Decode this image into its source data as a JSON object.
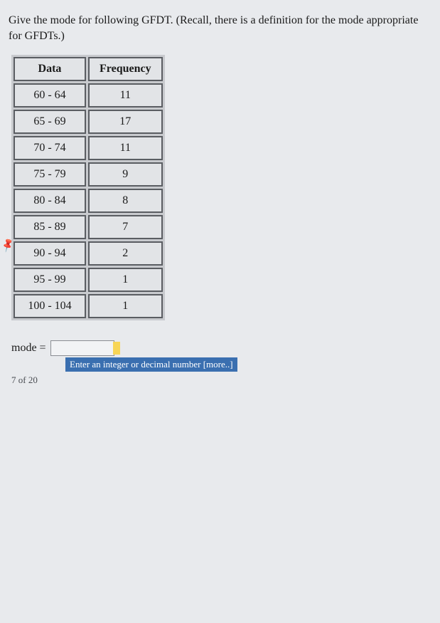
{
  "question": "Give the mode for following GFDT. (Recall, there is a definition for the mode appropriate for GFDTs.)",
  "table": {
    "headers": [
      "Data",
      "Frequency"
    ],
    "rows": [
      [
        "60 - 64",
        "11"
      ],
      [
        "65 - 69",
        "17"
      ],
      [
        "70 - 74",
        "11"
      ],
      [
        "75 - 79",
        "9"
      ],
      [
        "80 - 84",
        "8"
      ],
      [
        "85 - 89",
        "7"
      ],
      [
        "90 - 94",
        "2"
      ],
      [
        "95 - 99",
        "1"
      ],
      [
        "100 - 104",
        "1"
      ]
    ]
  },
  "answer": {
    "label": "mode =",
    "value": ""
  },
  "hint": "Enter an integer or decimal number [more..]",
  "pagenum": "7 of 20"
}
